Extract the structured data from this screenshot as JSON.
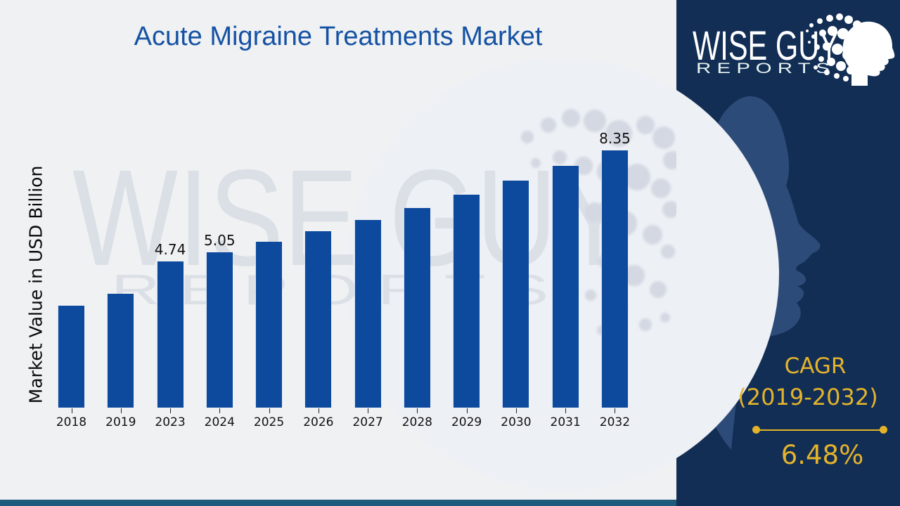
{
  "title": "Acute Migraine Treatments Market",
  "watermark": {
    "line1": "WISE GUY",
    "line2": "R E P O R T S"
  },
  "brand": {
    "line1": "WISE GUY",
    "line2": "R E P O R T S"
  },
  "cagr": {
    "label": "CAGR",
    "range": "(2019-2032)",
    "value": "6.48%"
  },
  "chart_data": {
    "type": "bar",
    "title": "Acute Migraine Treatments Market",
    "xlabel": "",
    "ylabel": "Market Value in USD Billion",
    "categories": [
      "2018",
      "2019",
      "2023",
      "2024",
      "2025",
      "2026",
      "2027",
      "2028",
      "2029",
      "2030",
      "2031",
      "2032"
    ],
    "values": [
      3.3,
      3.69,
      4.74,
      5.05,
      5.38,
      5.72,
      6.09,
      6.49,
      6.91,
      7.36,
      7.84,
      8.35
    ],
    "data_labels": {
      "2023": "4.74",
      "2024": "5.05",
      "2032": "8.35"
    },
    "ylim": [
      0,
      8.35
    ],
    "grid": false,
    "legend": false,
    "bar_color": "#0d4a9e"
  },
  "colors": {
    "background": "#f0f1f2",
    "bar": "#0d4a9e",
    "title_blue": "#1552a4",
    "panel_navy": "#132e55",
    "silhouette_navy": "#2d4b79",
    "circle_light": "#edf0f5",
    "watermark_gray": "#dbdfe6",
    "gold": "#e3b32c",
    "bottom_strip_teal": "#1d5b7c"
  }
}
